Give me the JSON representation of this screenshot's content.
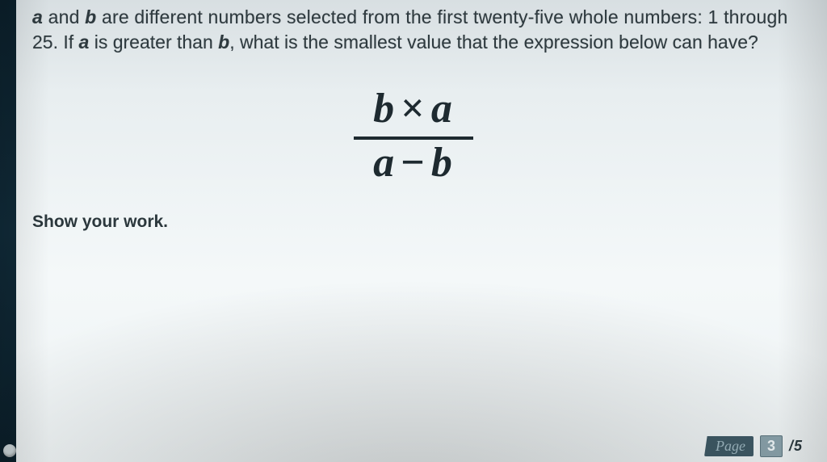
{
  "question": {
    "line1_pre": "a",
    "line1_mid1": " and ",
    "line1_var2": "b",
    "line1_mid2": " are different numbers selected from the first twenty-five whole numbers: 1 through",
    "line2_pre": "25. If ",
    "line2_a": "a",
    "line2_mid1": " is greater than ",
    "line2_b": "b",
    "line2_post": ", what is the smallest value that the expression below can have?"
  },
  "expression": {
    "numerator_left": "b",
    "numerator_op": "×",
    "numerator_right": "a",
    "denominator_left": "a",
    "denominator_op": "−",
    "denominator_right": "b",
    "font_size_pt": 52,
    "line_color": "#1e2a30"
  },
  "prompts": {
    "show_work": "Show your work."
  },
  "footer": {
    "page_label": "Page",
    "page_number": "3",
    "page_total": "/5"
  },
  "style": {
    "body_text_color": "#2e3a3f",
    "background_top": "#d8dfe2",
    "background_bottom": "#eef3f4",
    "bold_text_color": "#2b373c"
  }
}
